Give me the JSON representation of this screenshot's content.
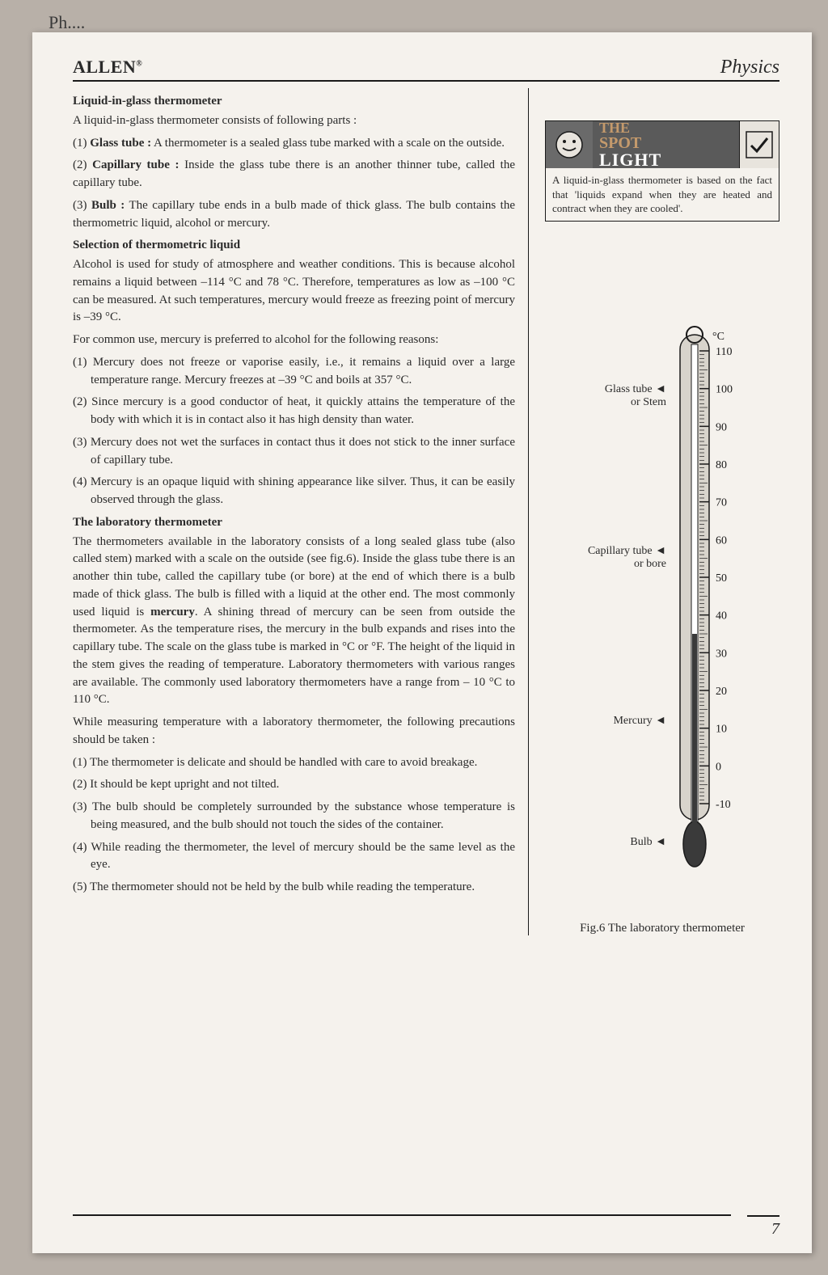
{
  "handwriting": "Ph....",
  "brand": "ALLEN",
  "brand_mark": "®",
  "subject": "Physics",
  "section1_title": "Liquid-in-glass thermometer",
  "intro1": "A liquid-in-glass thermometer consists of following parts :",
  "parts": [
    {
      "num": "(1)",
      "label": "Glass tube :",
      "text": "A thermometer is a sealed glass tube marked with a scale on the outside."
    },
    {
      "num": "(2)",
      "label": "Capillary tube :",
      "text": "Inside the glass tube there is an another thinner tube, called the capillary tube."
    },
    {
      "num": "(3)",
      "label": "Bulb :",
      "text": "The capillary tube ends in a bulb made of thick glass. The bulb contains the thermometric liquid, alcohol or mercury."
    }
  ],
  "section2_title": "Selection of thermometric liquid",
  "para2": "Alcohol is used for study of atmosphere and weather conditions. This is because alcohol remains a liquid between –114 °C and 78 °C. Therefore, temperatures as low as –100 °C can be measured. At such temperatures, mercury would freeze as freezing point of mercury is –39 °C.",
  "para2b": "For common use, mercury is preferred to alcohol for the following reasons:",
  "reasons": [
    {
      "num": "(1)",
      "text": "Mercury does not freeze or vaporise easily, i.e., it remains a liquid over a large temperature range. Mercury freezes at –39 °C and boils at 357 °C."
    },
    {
      "num": "(2)",
      "text": "Since mercury is a good conductor of heat, it quickly attains the temperature of the body with which it is in contact also it has high density than water."
    },
    {
      "num": "(3)",
      "text": "Mercury does not wet the surfaces in contact thus it does not stick to the inner surface of capillary tube."
    },
    {
      "num": "(4)",
      "text": "Mercury is an opaque liquid with shining appearance like silver. Thus, it can be easily observed through the glass."
    }
  ],
  "section3_title": "The laboratory thermometer",
  "para3": "The thermometers available in the laboratory consists of a long sealed glass tube (also called stem) marked with a scale on the outside (see fig.6). Inside the glass tube there is an another thin tube, called the capillary tube (or bore) at the end of which there is a bulb made of thick glass. The bulb is filled with a liquid at the other end. The most commonly used liquid is mercury. A shining thread of mercury can be seen from outside the thermometer. As the temperature rises, the mercury in the bulb expands and rises into the capillary tube. The scale on the glass tube is marked in °C or °F. The height of the liquid in the stem gives the reading of temperature. Laboratory thermometers with various ranges are available. The commonly used laboratory thermometers have a range from – 10 °C to 110 °C.",
  "para3b": "While measuring temperature with a laboratory thermometer, the following precautions should be taken :",
  "precautions": [
    {
      "num": "(1)",
      "text": "The thermometer is delicate and should be handled with care to avoid breakage."
    },
    {
      "num": "(2)",
      "text": "It should be kept upright and not tilted."
    },
    {
      "num": "(3)",
      "text": "The bulb should be completely surrounded by the substance whose temperature is being measured, and the bulb should not touch the sides of the container."
    },
    {
      "num": "(4)",
      "text": "While reading the thermometer, the level of mercury should be the same level as the eye."
    },
    {
      "num": "(5)",
      "text": "The thermometer should not be held by the bulb while reading the temperature."
    }
  ],
  "spotlight": {
    "title_top": "THE",
    "title_mid": "SPOT",
    "title_bot": "LIGHT",
    "body": "A liquid-in-glass thermometer is based on the fact that 'liquids expand when they are heated and contract when they are cooled'."
  },
  "thermometer": {
    "unit": "°C",
    "ticks": [
      110,
      100,
      90,
      80,
      70,
      60,
      50,
      40,
      30,
      20,
      10,
      0,
      -10
    ],
    "mercury_level": 35,
    "labels": {
      "glass_tube": "Glass tube\nor Stem",
      "capillary": "Capillary tube\nor bore",
      "mercury": "Mercury",
      "bulb": "Bulb"
    },
    "caption": "Fig.6 The laboratory thermometer",
    "colors": {
      "glass": "#d8d4cc",
      "bore": "#ffffff",
      "mercury": "#3a3a3a",
      "outline": "#1a1a1a"
    }
  },
  "page_number": "7"
}
